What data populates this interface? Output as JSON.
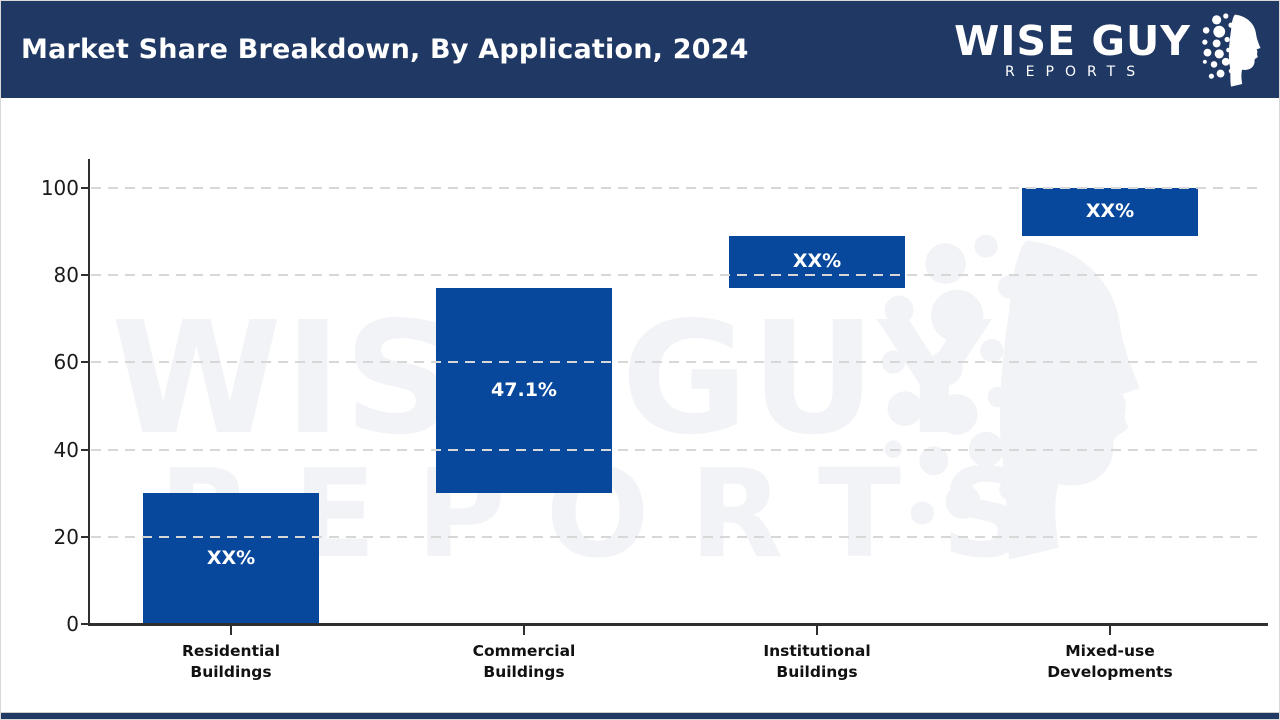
{
  "header": {
    "title": "Market Share Breakdown, By Application, 2024",
    "logo": {
      "line1": "WISE GUY",
      "line2": "REPORTS"
    }
  },
  "watermark": {
    "line1": "WISE GUY",
    "line2": "REPORTS"
  },
  "colors": {
    "header_bg": "#203864",
    "bar": "#08489c",
    "grid": "#d7d7d7",
    "axis": "#2f2f2f",
    "watermark": "#f2f3f6",
    "bar_label_text": "#ffffff"
  },
  "chart_data": {
    "type": "bar",
    "subtype": "stacked-percentage-waterfall",
    "title": "Market Share Breakdown, By Application, 2024",
    "categories": [
      [
        "Residential",
        "Buildings"
      ],
      [
        "Commercial",
        "Buildings"
      ],
      [
        "Institutional",
        "Buildings"
      ],
      [
        "Mixed-use",
        "Developments"
      ]
    ],
    "segments": [
      {
        "category": "Residential Buildings",
        "start": 0,
        "end": 30,
        "label": "XX%"
      },
      {
        "category": "Commercial Buildings",
        "start": 30,
        "end": 77.1,
        "label": "47.1%",
        "value": 47.1
      },
      {
        "category": "Institutional Buildings",
        "start": 77.1,
        "end": 89.1,
        "label": "XX%"
      },
      {
        "category": "Mixed-use Developments",
        "start": 89.1,
        "end": 100,
        "label": "XX%"
      }
    ],
    "yticks": [
      0,
      20,
      40,
      60,
      80,
      100
    ],
    "ylim": [
      0,
      100
    ],
    "xlabel": "",
    "ylabel": "",
    "grid": "horizontal-dashed-above-bars",
    "legend": "none"
  }
}
